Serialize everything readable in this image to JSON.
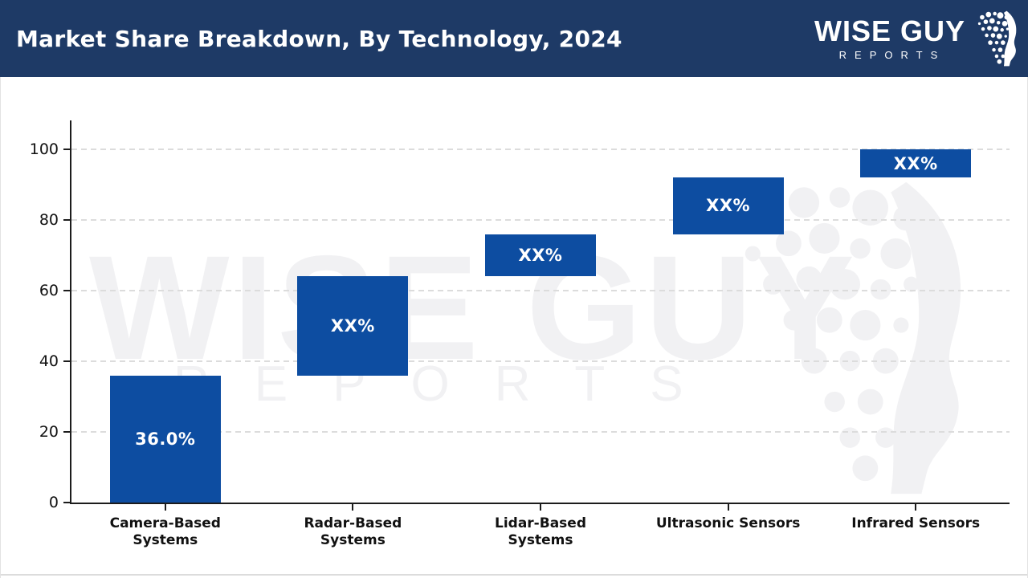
{
  "header": {
    "title": "Market Share Breakdown, By Technology, 2024"
  },
  "brand": {
    "name": "WISE GUY",
    "subtitle": "REPORTS"
  },
  "watermark": {
    "line1": "WISE GUY",
    "line2": "REPORTS"
  },
  "colors": {
    "header_bg": "#1e3a66",
    "bar": "#0d4da1",
    "grid": "#dcdcdc",
    "axis": "#1c1c1c",
    "bar_label": "#ffffff",
    "watermark": "#f1f1f3"
  },
  "chart_data": {
    "type": "bar",
    "subtype": "waterfall",
    "title": "Market Share Breakdown, By Technology, 2024",
    "xlabel": "",
    "ylabel": "",
    "ylim": [
      0,
      108
    ],
    "yticks": [
      0,
      20,
      40,
      60,
      80,
      100
    ],
    "grid": "horizontal-dashed",
    "legend": "none",
    "bar_color": "#0d4da1",
    "categories": [
      "Camera-Based\nSystems",
      "Radar-Based\nSystems",
      "Lidar-Based\nSystems",
      "Ultrasonic Sensors",
      "Infrared Sensors"
    ],
    "segments": [
      {
        "start": 0,
        "end": 36,
        "label": "36.0%"
      },
      {
        "start": 36,
        "end": 64,
        "label": "XX%"
      },
      {
        "start": 64,
        "end": 76,
        "label": "XX%"
      },
      {
        "start": 76,
        "end": 92,
        "label": "XX%"
      },
      {
        "start": 92,
        "end": 100,
        "label": "XX%"
      }
    ]
  }
}
